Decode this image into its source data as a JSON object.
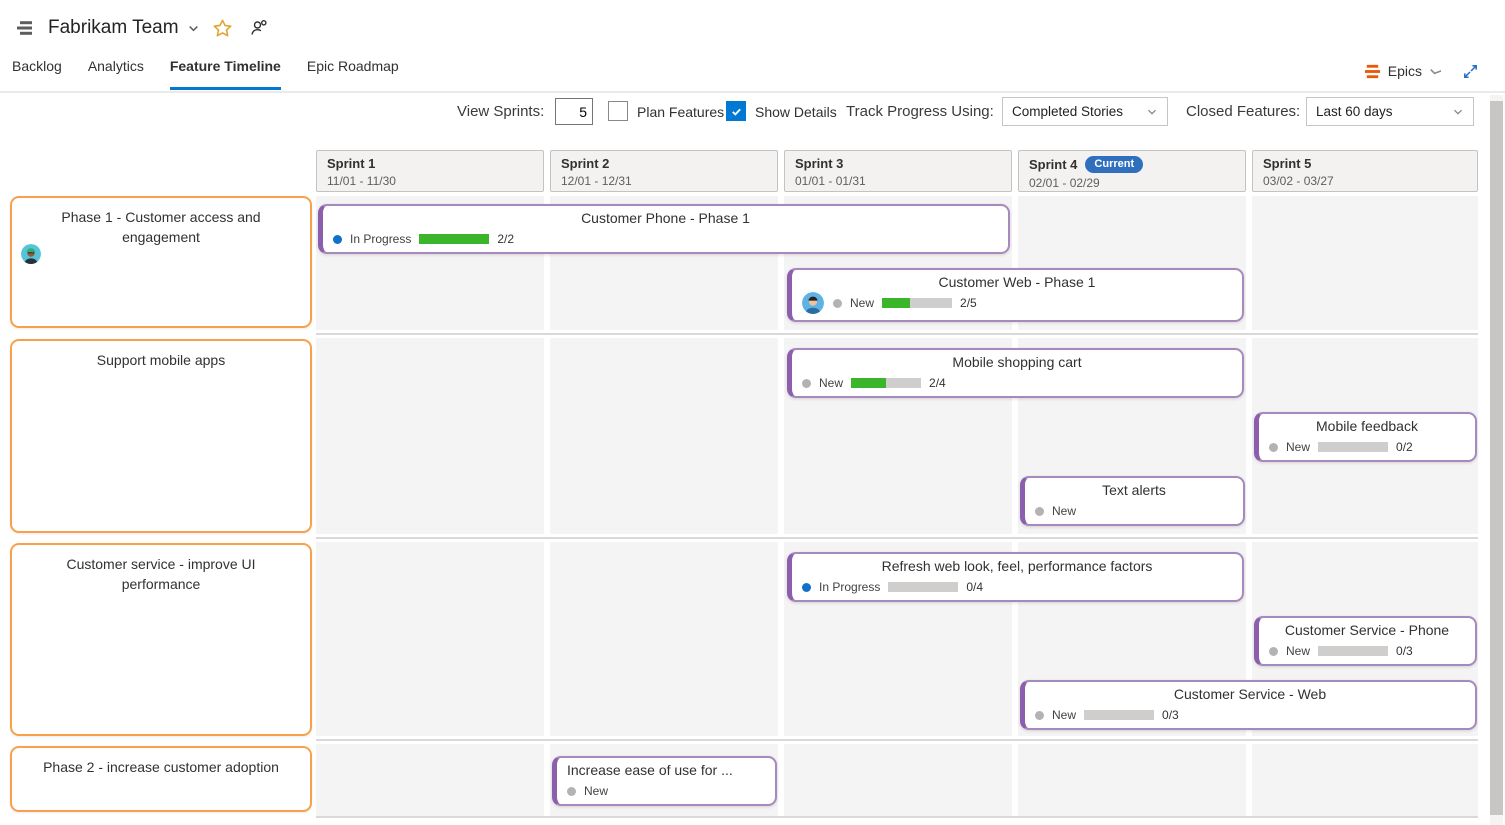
{
  "header": {
    "team_name": "Fabrikam Team",
    "tabs": [
      "Backlog",
      "Analytics",
      "Feature Timeline",
      "Epic Roadmap"
    ],
    "active_tab": "Feature Timeline",
    "backlog_level": "Epics"
  },
  "toolbar": {
    "view_sprints_label": "View Sprints:",
    "view_sprints_value": "5",
    "plan_features_label": "Plan Features",
    "plan_features_checked": false,
    "show_details_label": "Show Details",
    "show_details_checked": true,
    "track_progress_label": "Track Progress Using:",
    "track_progress_value": "Completed Stories",
    "closed_features_label": "Closed Features:",
    "closed_features_value": "Last 60 days"
  },
  "sprints": [
    {
      "name": "Sprint 1",
      "dates": "11/01 - 11/30"
    },
    {
      "name": "Sprint 2",
      "dates": "12/01 - 12/31"
    },
    {
      "name": "Sprint 3",
      "dates": "01/01 - 01/31"
    },
    {
      "name": "Sprint 4",
      "dates": "02/01 - 02/29",
      "badge": "Current"
    },
    {
      "name": "Sprint 5",
      "dates": "03/02 - 03/27"
    }
  ],
  "epics": [
    {
      "title": "Phase 1 - Customer access and engagement",
      "has_avatar": true
    },
    {
      "title": "Support mobile apps",
      "has_avatar": false
    },
    {
      "title": "Customer service - improve UI performance",
      "has_avatar": false
    },
    {
      "title": "Phase 2 - increase customer adoption",
      "has_avatar": false
    }
  ],
  "features": [
    {
      "title": "Customer Phone - Phase 1",
      "status": "In Progress",
      "fraction": "2/2",
      "progress_percent": 100,
      "has_avatar": false
    },
    {
      "title": "Customer Web - Phase 1",
      "status": "New",
      "fraction": "2/5",
      "progress_percent": 40,
      "has_avatar": true
    },
    {
      "title": "Mobile shopping cart",
      "status": "New",
      "fraction": "2/4",
      "progress_percent": 50,
      "has_avatar": false
    },
    {
      "title": "Mobile feedback",
      "status": "New",
      "fraction": "0/2",
      "progress_percent": 0,
      "has_avatar": false
    },
    {
      "title": "Text alerts",
      "status": "New",
      "fraction": "",
      "progress_percent": null,
      "has_avatar": false
    },
    {
      "title": "Refresh web look, feel, performance factors",
      "status": "In Progress",
      "fraction": "0/4",
      "progress_percent": 0,
      "has_avatar": false
    },
    {
      "title": "Customer Service - Phone",
      "status": "New",
      "fraction": "0/3",
      "progress_percent": 0,
      "has_avatar": false
    },
    {
      "title": "Customer Service - Web",
      "status": "New",
      "fraction": "0/3",
      "progress_percent": 0,
      "has_avatar": false
    },
    {
      "title": "Increase ease of use for ...",
      "status": "New",
      "fraction": "",
      "progress_percent": null,
      "has_avatar": false
    }
  ],
  "colors": {
    "accent": "#0078d4",
    "epic_border": "#f7a24b",
    "feature_border": "#8b5fae",
    "progress_green": "#3bb529",
    "progress_track": "#cfcecd",
    "current_badge": "#2f6fbe",
    "in_progress_dot": "#1070ca",
    "new_dot": "#b5b3b1"
  }
}
